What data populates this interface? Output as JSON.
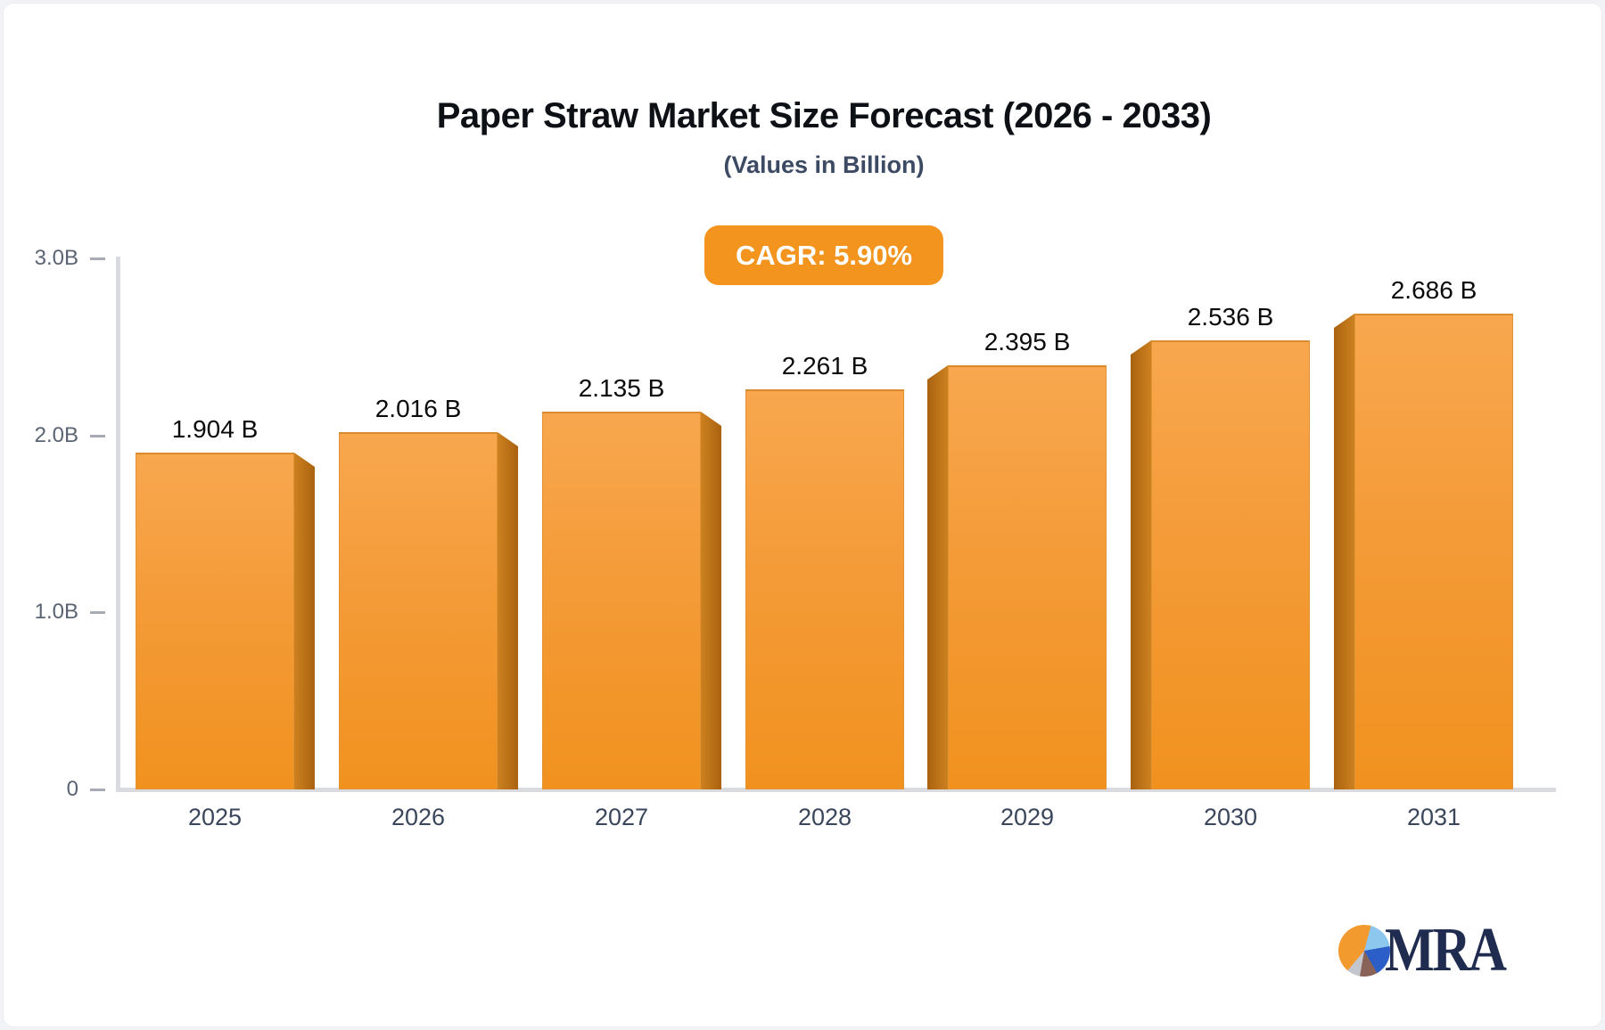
{
  "page": {
    "background": "#F2F3F6",
    "card_background": "#FFFFFF"
  },
  "header": {
    "title": "Paper Straw Market Size Forecast (2026 - 2033)",
    "subtitle": "(Values in Billion)"
  },
  "badge": {
    "label": "CAGR: 5.90%",
    "background": "#F3941F",
    "text_color": "#FFFFFF"
  },
  "chart_data": {
    "type": "bar",
    "categories": [
      "2025",
      "2026",
      "2027",
      "2028",
      "2029",
      "2030",
      "2031"
    ],
    "values": [
      1.904,
      2.016,
      2.135,
      2.261,
      2.395,
      2.536,
      2.686
    ],
    "value_labels": [
      "1.904 B",
      "2.016 B",
      "2.135 B",
      "2.261 B",
      "2.395 B",
      "2.536 B",
      "2.686 B"
    ],
    "title": "Paper Straw Market Size Forecast (2026 - 2033)",
    "subtitle": "(Values in Billion)",
    "xlabel": "",
    "ylabel": "",
    "ylim": [
      0,
      3
    ],
    "yticks": [
      {
        "label": "0",
        "value": 0
      },
      {
        "label": "1.0B",
        "value": 1
      },
      {
        "label": "2.0B",
        "value": 2
      },
      {
        "label": "3.0B",
        "value": 3
      }
    ],
    "grid": false,
    "legend": false,
    "bar_style": "3d-extruded",
    "colors": {
      "bar_face_top": "#F8A74F",
      "bar_face_bottom": "#F1921F",
      "bar_face_border": "#D98C2E",
      "bar_side_dark": "#A9620F",
      "bar_side_light": "#CD8120",
      "axis_line": "#D9DBE0",
      "tick_mark": "#A7ABB3",
      "y_tick_text": "#5A6472",
      "x_tick_text": "#3A465C",
      "value_text": "#0B0B0B"
    }
  },
  "logo": {
    "text": "MRA",
    "text_color": "#1F2C4F",
    "pie_slices": [
      {
        "name": "orange",
        "color": "#F29A2E"
      },
      {
        "name": "light-blue",
        "color": "#8EC7ED"
      },
      {
        "name": "royal-blue",
        "color": "#2B5FC7"
      },
      {
        "name": "brown",
        "color": "#8A6358"
      },
      {
        "name": "gray",
        "color": "#C3C7CD"
      }
    ]
  }
}
